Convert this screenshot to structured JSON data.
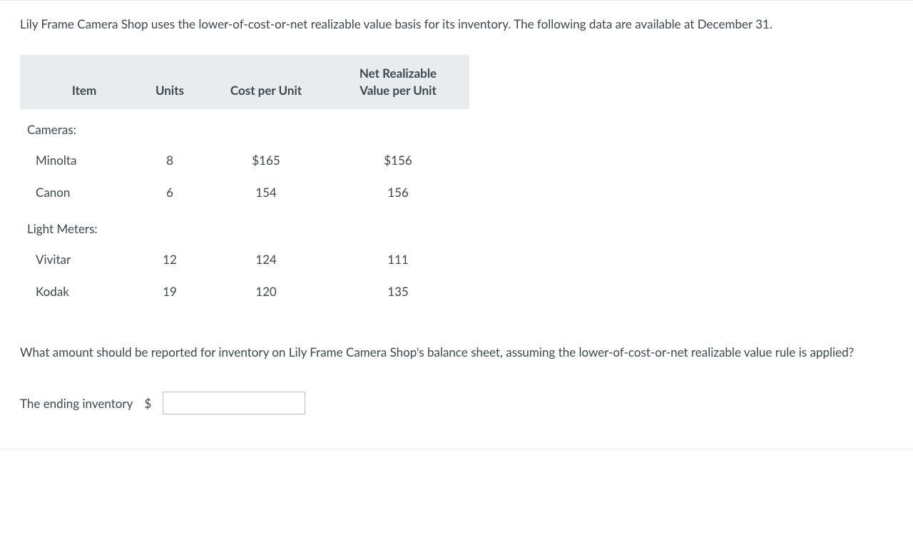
{
  "intro": "Lily Frame Camera Shop uses the lower-of-cost-or-net realizable value basis for its inventory. The following data are available at December 31.",
  "table": {
    "columns": {
      "item": "Item",
      "units": "Units",
      "cost": "Cost per Unit",
      "nrv_line1": "Net Realizable",
      "nrv_line2": "Value per Unit"
    },
    "categories": [
      {
        "label": "Cameras:",
        "rows": [
          {
            "item": "Minolta",
            "units": "8",
            "cost": "$165",
            "nrv": "$156"
          },
          {
            "item": "Canon",
            "units": "6",
            "cost": "154",
            "nrv": "156"
          }
        ]
      },
      {
        "label": "Light Meters:",
        "rows": [
          {
            "item": "Vivitar",
            "units": "12",
            "cost": "124",
            "nrv": "111"
          },
          {
            "item": "Kodak",
            "units": "19",
            "cost": "120",
            "nrv": "135"
          }
        ]
      }
    ],
    "header_bg": "#e9ecef",
    "text_color": "#3d474d",
    "font_size": 17
  },
  "question": "What amount should be reported for inventory on Lily Frame Camera Shop's balance sheet, assuming the lower-of-cost-or-net realizable value rule is applied?",
  "answer": {
    "label": "The ending inventory",
    "currency": "$",
    "value": ""
  }
}
